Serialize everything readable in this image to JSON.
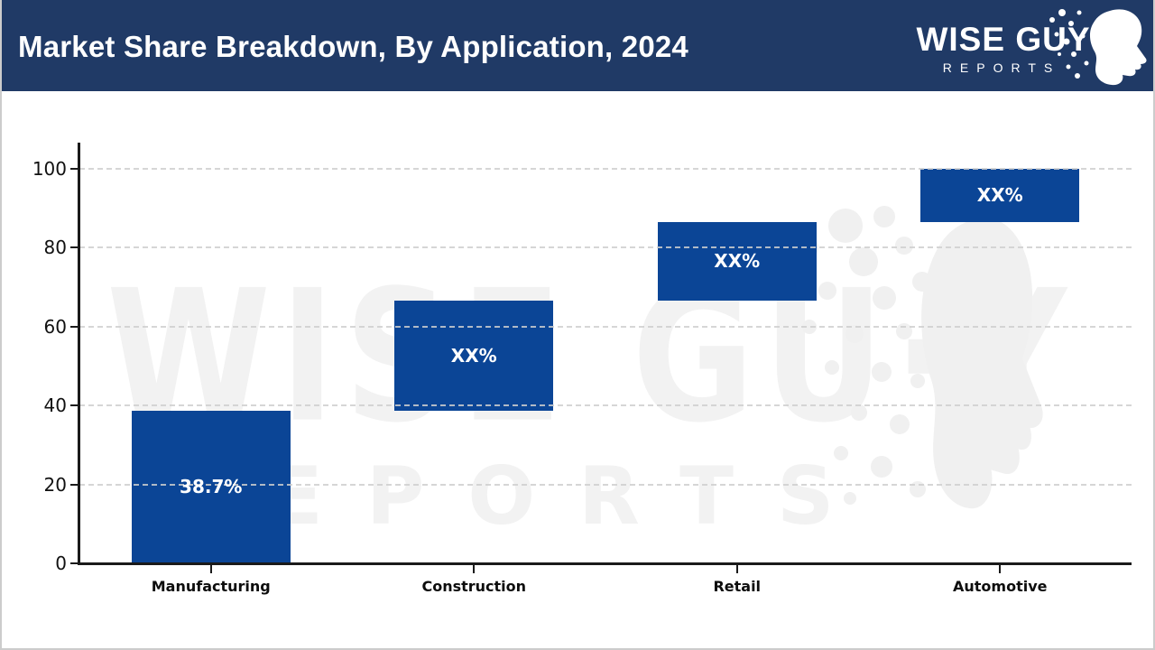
{
  "header": {
    "title": "Market Share Breakdown, By Application, 2024",
    "logo": {
      "line1": "WISE GUY",
      "line2": "REPORTS"
    }
  },
  "watermark": {
    "line1": "WISE GU·Y",
    "line2": "REPORTS"
  },
  "chart_data": {
    "type": "bar",
    "subtype": "waterfall",
    "title": "Market Share Breakdown, By Application, 2024",
    "categories": [
      "Manufacturing",
      "Construction",
      "Retail",
      "Automotive"
    ],
    "segments": [
      {
        "category": "Manufacturing",
        "start": 0,
        "end": 38.7,
        "label": "38.7%"
      },
      {
        "category": "Construction",
        "start": 38.7,
        "end": 66.5,
        "label": "XX%"
      },
      {
        "category": "Retail",
        "start": 66.5,
        "end": 86.5,
        "label": "XX%"
      },
      {
        "category": "Automotive",
        "start": 86.5,
        "end": 100,
        "label": "XX%"
      }
    ],
    "yticks": [
      0,
      20,
      40,
      60,
      80,
      100
    ],
    "ylim": [
      0,
      100
    ],
    "xlabel": "",
    "ylabel": "",
    "grid": "dashed-horizontal",
    "legend": "none",
    "bar_color": "#0b4596"
  },
  "colors": {
    "header_bg": "#203a66",
    "bar": "#0b4596",
    "axis": "#1a1a1a",
    "grid": "#cfcfcf",
    "text": "#111111",
    "bar_label_text": "#ffffff",
    "watermark": "#f2f2f2",
    "border": "#cccccc"
  }
}
